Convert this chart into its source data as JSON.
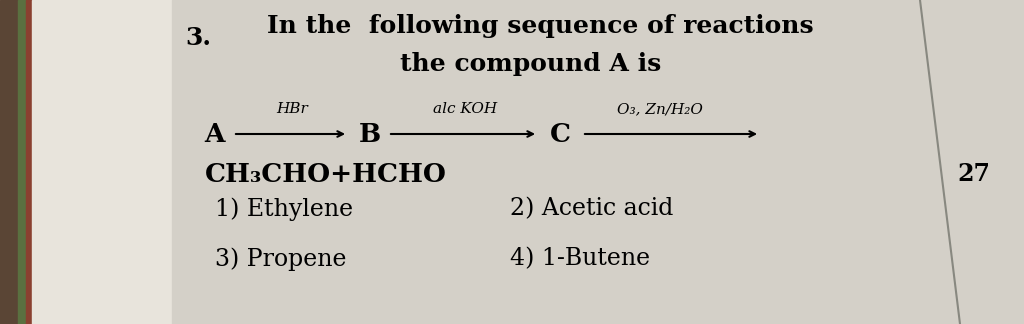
{
  "bg_color": "#d8d4cc",
  "left_strip_color": "#b0a898",
  "spine_color": "#8a7060",
  "title_line1": "In the  following sequence of reactions",
  "title_line2": "the compound A is",
  "question_number": "3.",
  "reaction_A": "A",
  "reaction_B": "B",
  "reaction_C": "C",
  "label_HBr": "HBr",
  "label_alcKOH": "alc KOH",
  "label_O3": "O₃, Zn/H₂O",
  "product": "CH₃CHO+HCHO",
  "option1": "1) Ethylene",
  "option2": "2) Acetic acid",
  "option3": "3) Propene",
  "option4": "4) 1-Butene",
  "page_number": "27",
  "title_fontsize": 18,
  "subtitle_fontsize": 18,
  "body_fontsize": 17,
  "option_fontsize": 17,
  "label_fontsize": 11,
  "letter_fontsize": 19
}
